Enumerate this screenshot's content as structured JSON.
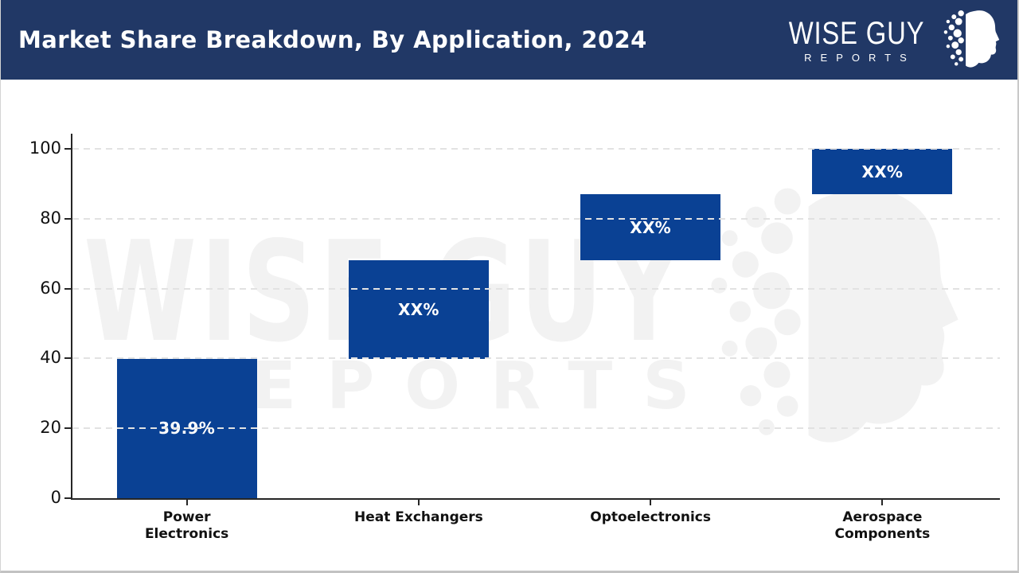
{
  "header": {
    "title": "Market Share Breakdown, By Application, 2024",
    "bg_color": "#213866",
    "logo": {
      "line1": "WISE GUY",
      "line2": "REPORTS",
      "face_icon": "dotted-face-profile"
    }
  },
  "watermark": {
    "line1": "WISE GUY",
    "line2": "REPORTS",
    "color": "#f2f2f2",
    "face_icon": "dotted-face-profile"
  },
  "chart_data": {
    "type": "bar",
    "subtype": "waterfall",
    "title": "Market Share Breakdown, By Application, 2024",
    "categories": [
      "Power Electronics",
      "Heat Exchangers",
      "Optoelectronics",
      "Aerospace Components"
    ],
    "series": [
      {
        "name": "Market share (%)",
        "segments": [
          {
            "category": "Power Electronics",
            "start": 0,
            "end": 39.9,
            "label": "39.9%"
          },
          {
            "category": "Heat Exchangers",
            "start": 39.9,
            "end": 68,
            "label": "XX%"
          },
          {
            "category": "Optoelectronics",
            "start": 68,
            "end": 87,
            "label": "XX%"
          },
          {
            "category": "Aerospace Components",
            "start": 87,
            "end": 100,
            "label": "XX%"
          }
        ]
      }
    ],
    "bar_color": "#0a4194",
    "bar_label_color": "#ffffff",
    "ylim": [
      0,
      100
    ],
    "yticks": [
      0,
      20,
      40,
      60,
      80,
      100
    ],
    "xlabel": "",
    "ylabel": "",
    "grid": {
      "horizontal": true,
      "style": "dashed",
      "color": "#e2e2e2",
      "drawn_above_bars": true
    },
    "axis_color": "#262626",
    "legend": "none"
  }
}
